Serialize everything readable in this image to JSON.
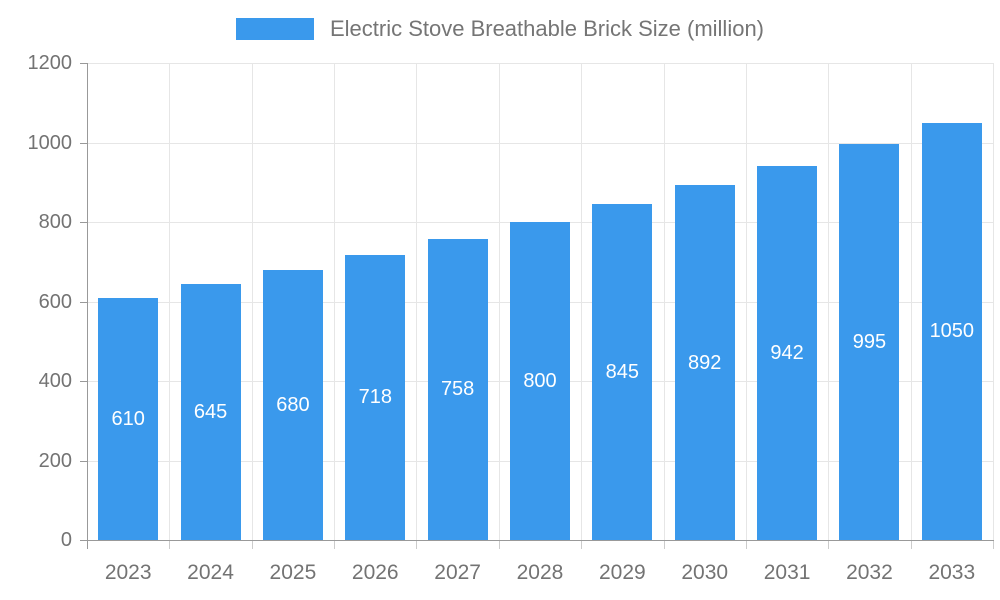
{
  "legend": {
    "label": "Electric Stove Breathable Brick Size (million)"
  },
  "chart_data": {
    "type": "bar",
    "title": "Electric Stove Breathable Brick Size (million)",
    "categories": [
      "2023",
      "2024",
      "2025",
      "2026",
      "2027",
      "2028",
      "2029",
      "2030",
      "2031",
      "2032",
      "2033"
    ],
    "values": [
      610,
      645,
      680,
      718,
      758,
      800,
      845,
      892,
      942,
      995,
      1050
    ],
    "series": [
      {
        "name": "Electric Stove Breathable Brick Size (million)",
        "values": [
          610,
          645,
          680,
          718,
          758,
          800,
          845,
          892,
          942,
          995,
          1050
        ]
      }
    ],
    "xlabel": "",
    "ylabel": "",
    "ylim": [
      0,
      1200
    ],
    "yticks": [
      0,
      200,
      400,
      600,
      800,
      1000,
      1200
    ],
    "grid": true,
    "legend_position": "top",
    "value_label_position": "inside-center",
    "colors": {
      "bar": "#3A99EC",
      "grid": "#E6E6E6",
      "axis": "#999999",
      "tick": "#CCCCCC",
      "axis_label": "#737373",
      "legend_text": "#757575",
      "value_label": "#FFFFFF"
    }
  }
}
